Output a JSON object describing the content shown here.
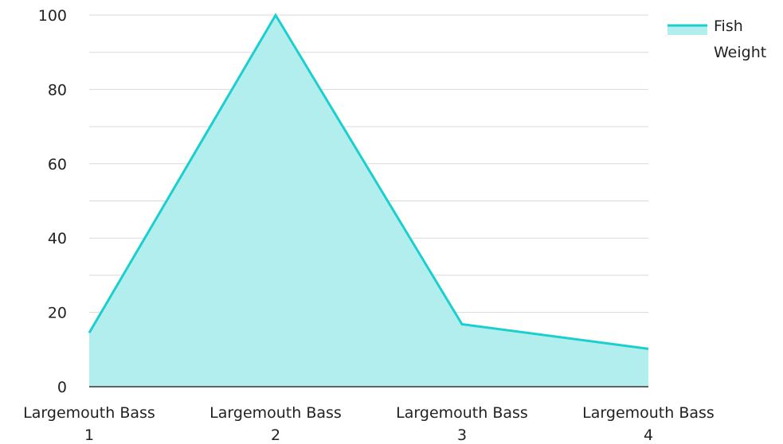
{
  "chart_data": {
    "type": "area",
    "categories": [
      [
        "Largemouth Bass",
        "1"
      ],
      [
        "Largemouth Bass",
        "2"
      ],
      [
        "Largemouth Bass",
        "3"
      ],
      [
        "Largemouth Bass",
        "4"
      ]
    ],
    "series": [
      {
        "name": "Fish Weight",
        "values": [
          14.5,
          100,
          16.8,
          10.2
        ]
      }
    ],
    "ylim": [
      0,
      100
    ],
    "y_ticks": [
      0,
      20,
      40,
      60,
      80,
      100
    ],
    "y_tick_labels": [
      "0",
      "20",
      "40",
      "60",
      "80",
      "100"
    ],
    "title": "",
    "xlabel": "",
    "ylabel": "",
    "grid": true,
    "legend": {
      "position": "top-right",
      "lines": [
        "Fish",
        "Weight"
      ]
    },
    "colors": {
      "line": "#1ccfcf",
      "fill": "#b3eeee",
      "grid": "#d9d9d9",
      "axis": "#333333"
    }
  }
}
